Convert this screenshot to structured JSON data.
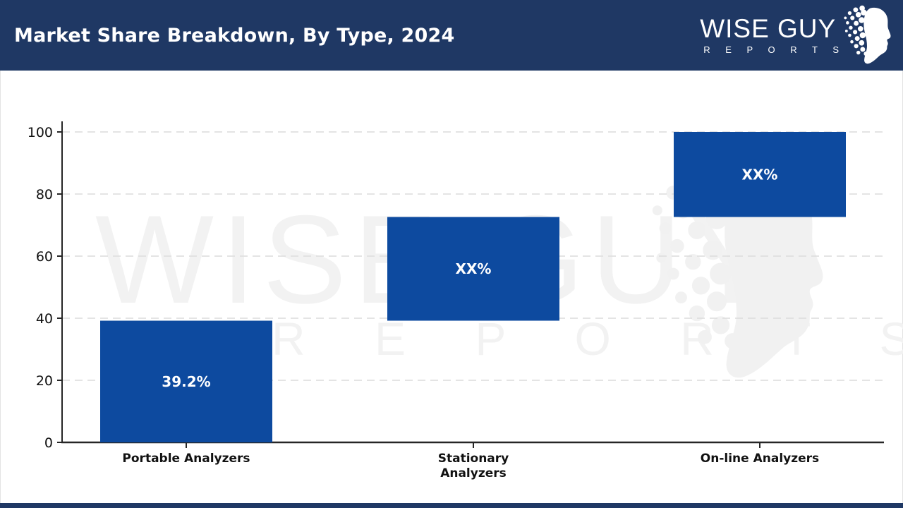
{
  "header": {
    "title": "Market Share Breakdown, By Type, 2024",
    "logo": {
      "line1": "WISE GUY",
      "line2": "R E P O R T S"
    }
  },
  "watermark": {
    "line1": "WISE GUY",
    "line2": "R E P O R T S"
  },
  "colors": {
    "header_bg": "#1f3864",
    "footer_bg": "#1f3864",
    "bar": "#0d4a9f",
    "bar_label": "#ffffff",
    "grid": "#dcdcdc",
    "axis": "#262626",
    "tick_text": "#111111",
    "watermark": "#f2f2f2"
  },
  "chart_data": {
    "type": "bar",
    "subtype": "floating-segment-breakdown",
    "title": "Market Share Breakdown, By Type, 2024",
    "xlabel": "",
    "ylabel": "",
    "ylim": [
      0,
      100
    ],
    "yticks": [
      0,
      20,
      40,
      60,
      80,
      100
    ],
    "grid": "dashed horizontal gridlines",
    "legend": "none",
    "categories": [
      "Portable Analyzers",
      "Stationary\nAnalyzers",
      "On-line Analyzers"
    ],
    "segments": [
      {
        "category": "Portable Analyzers",
        "from": 0,
        "to": 39.2,
        "label": "39.2%"
      },
      {
        "category": "Stationary Analyzers",
        "from": 39.2,
        "to": 72.6,
        "label": "XX%"
      },
      {
        "category": "On-line Analyzers",
        "from": 72.6,
        "to": 100,
        "label": "XX%"
      }
    ]
  }
}
